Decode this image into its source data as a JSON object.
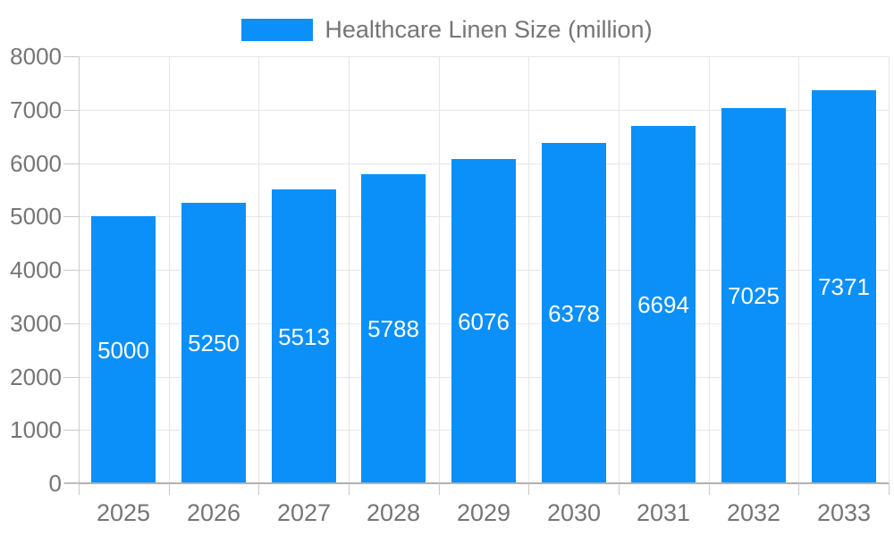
{
  "chart_data": {
    "type": "bar",
    "title": "",
    "legend": "Healthcare Linen Size (million)",
    "categories": [
      "2025",
      "2026",
      "2027",
      "2028",
      "2029",
      "2030",
      "2031",
      "2032",
      "2033"
    ],
    "values": [
      5000,
      5250,
      5513,
      5788,
      6076,
      6378,
      6694,
      7025,
      7371
    ],
    "bar_labels": [
      "5000",
      "5250",
      "5513",
      "5788",
      "6076",
      "6378",
      "6694",
      "7025",
      "7371"
    ],
    "ytick_labels": [
      "0",
      "1000",
      "2000",
      "3000",
      "4000",
      "5000",
      "6000",
      "7000",
      "8000"
    ],
    "ylim": [
      0,
      8000
    ],
    "ytick_step": 1000,
    "xlabel": "",
    "ylabel": "",
    "grid": true,
    "legend_position": "top"
  },
  "colors": {
    "bar": "#0B90F9",
    "bar_label": "#FFFFFF",
    "text": "#757575",
    "grid": "#E6E6E6",
    "axis_line": "#B0B0B0",
    "tick": "#C9C9C9"
  }
}
